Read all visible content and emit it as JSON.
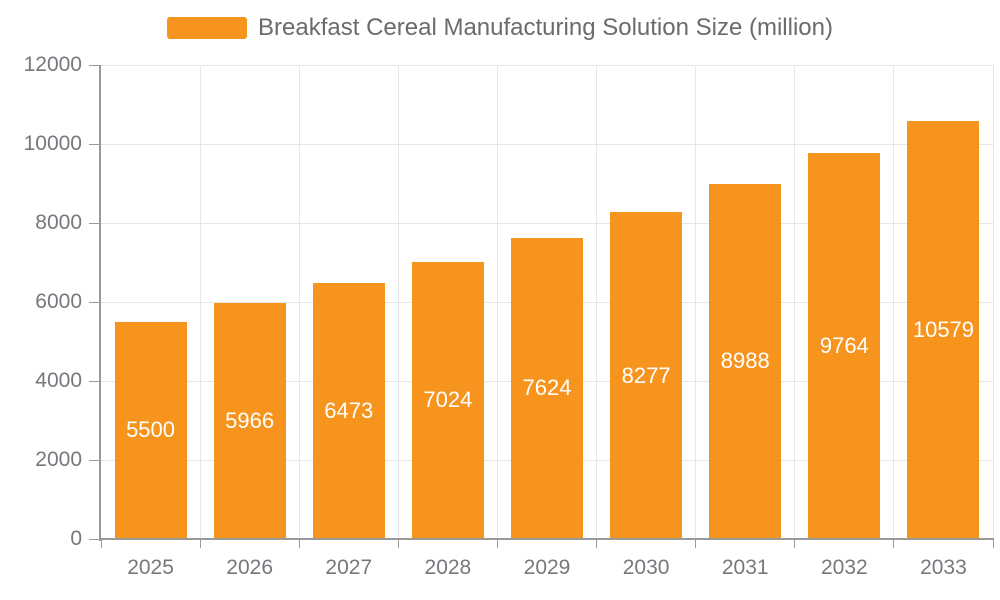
{
  "legend": {
    "label": "Breakfast Cereal Manufacturing Solution Size (million)"
  },
  "chart_data": {
    "type": "bar",
    "title": "Breakfast Cereal Manufacturing Solution Size (million)",
    "series_name": "Breakfast Cereal Manufacturing Solution Size (million)",
    "categories": [
      "2025",
      "2026",
      "2027",
      "2028",
      "2029",
      "2030",
      "2031",
      "2032",
      "2033"
    ],
    "values": [
      5500,
      5966,
      6473,
      7024,
      7624,
      8277,
      8988,
      9764,
      10579
    ],
    "xlabel": "",
    "ylabel": "",
    "ylim": [
      0,
      12000
    ],
    "y_ticks": [
      0,
      2000,
      4000,
      6000,
      8000,
      10000,
      12000
    ],
    "grid": true,
    "legend_position": "top-center",
    "value_labels": "inside-center"
  },
  "colors": {
    "bar": "#F7941E",
    "axis_line": "#999999",
    "grid_line": "#E6E6E6",
    "axis_text": "#75787D",
    "legend_text": "#6B6B6B",
    "value_label": "#FFFFFF",
    "background": "#FFFFFF"
  }
}
